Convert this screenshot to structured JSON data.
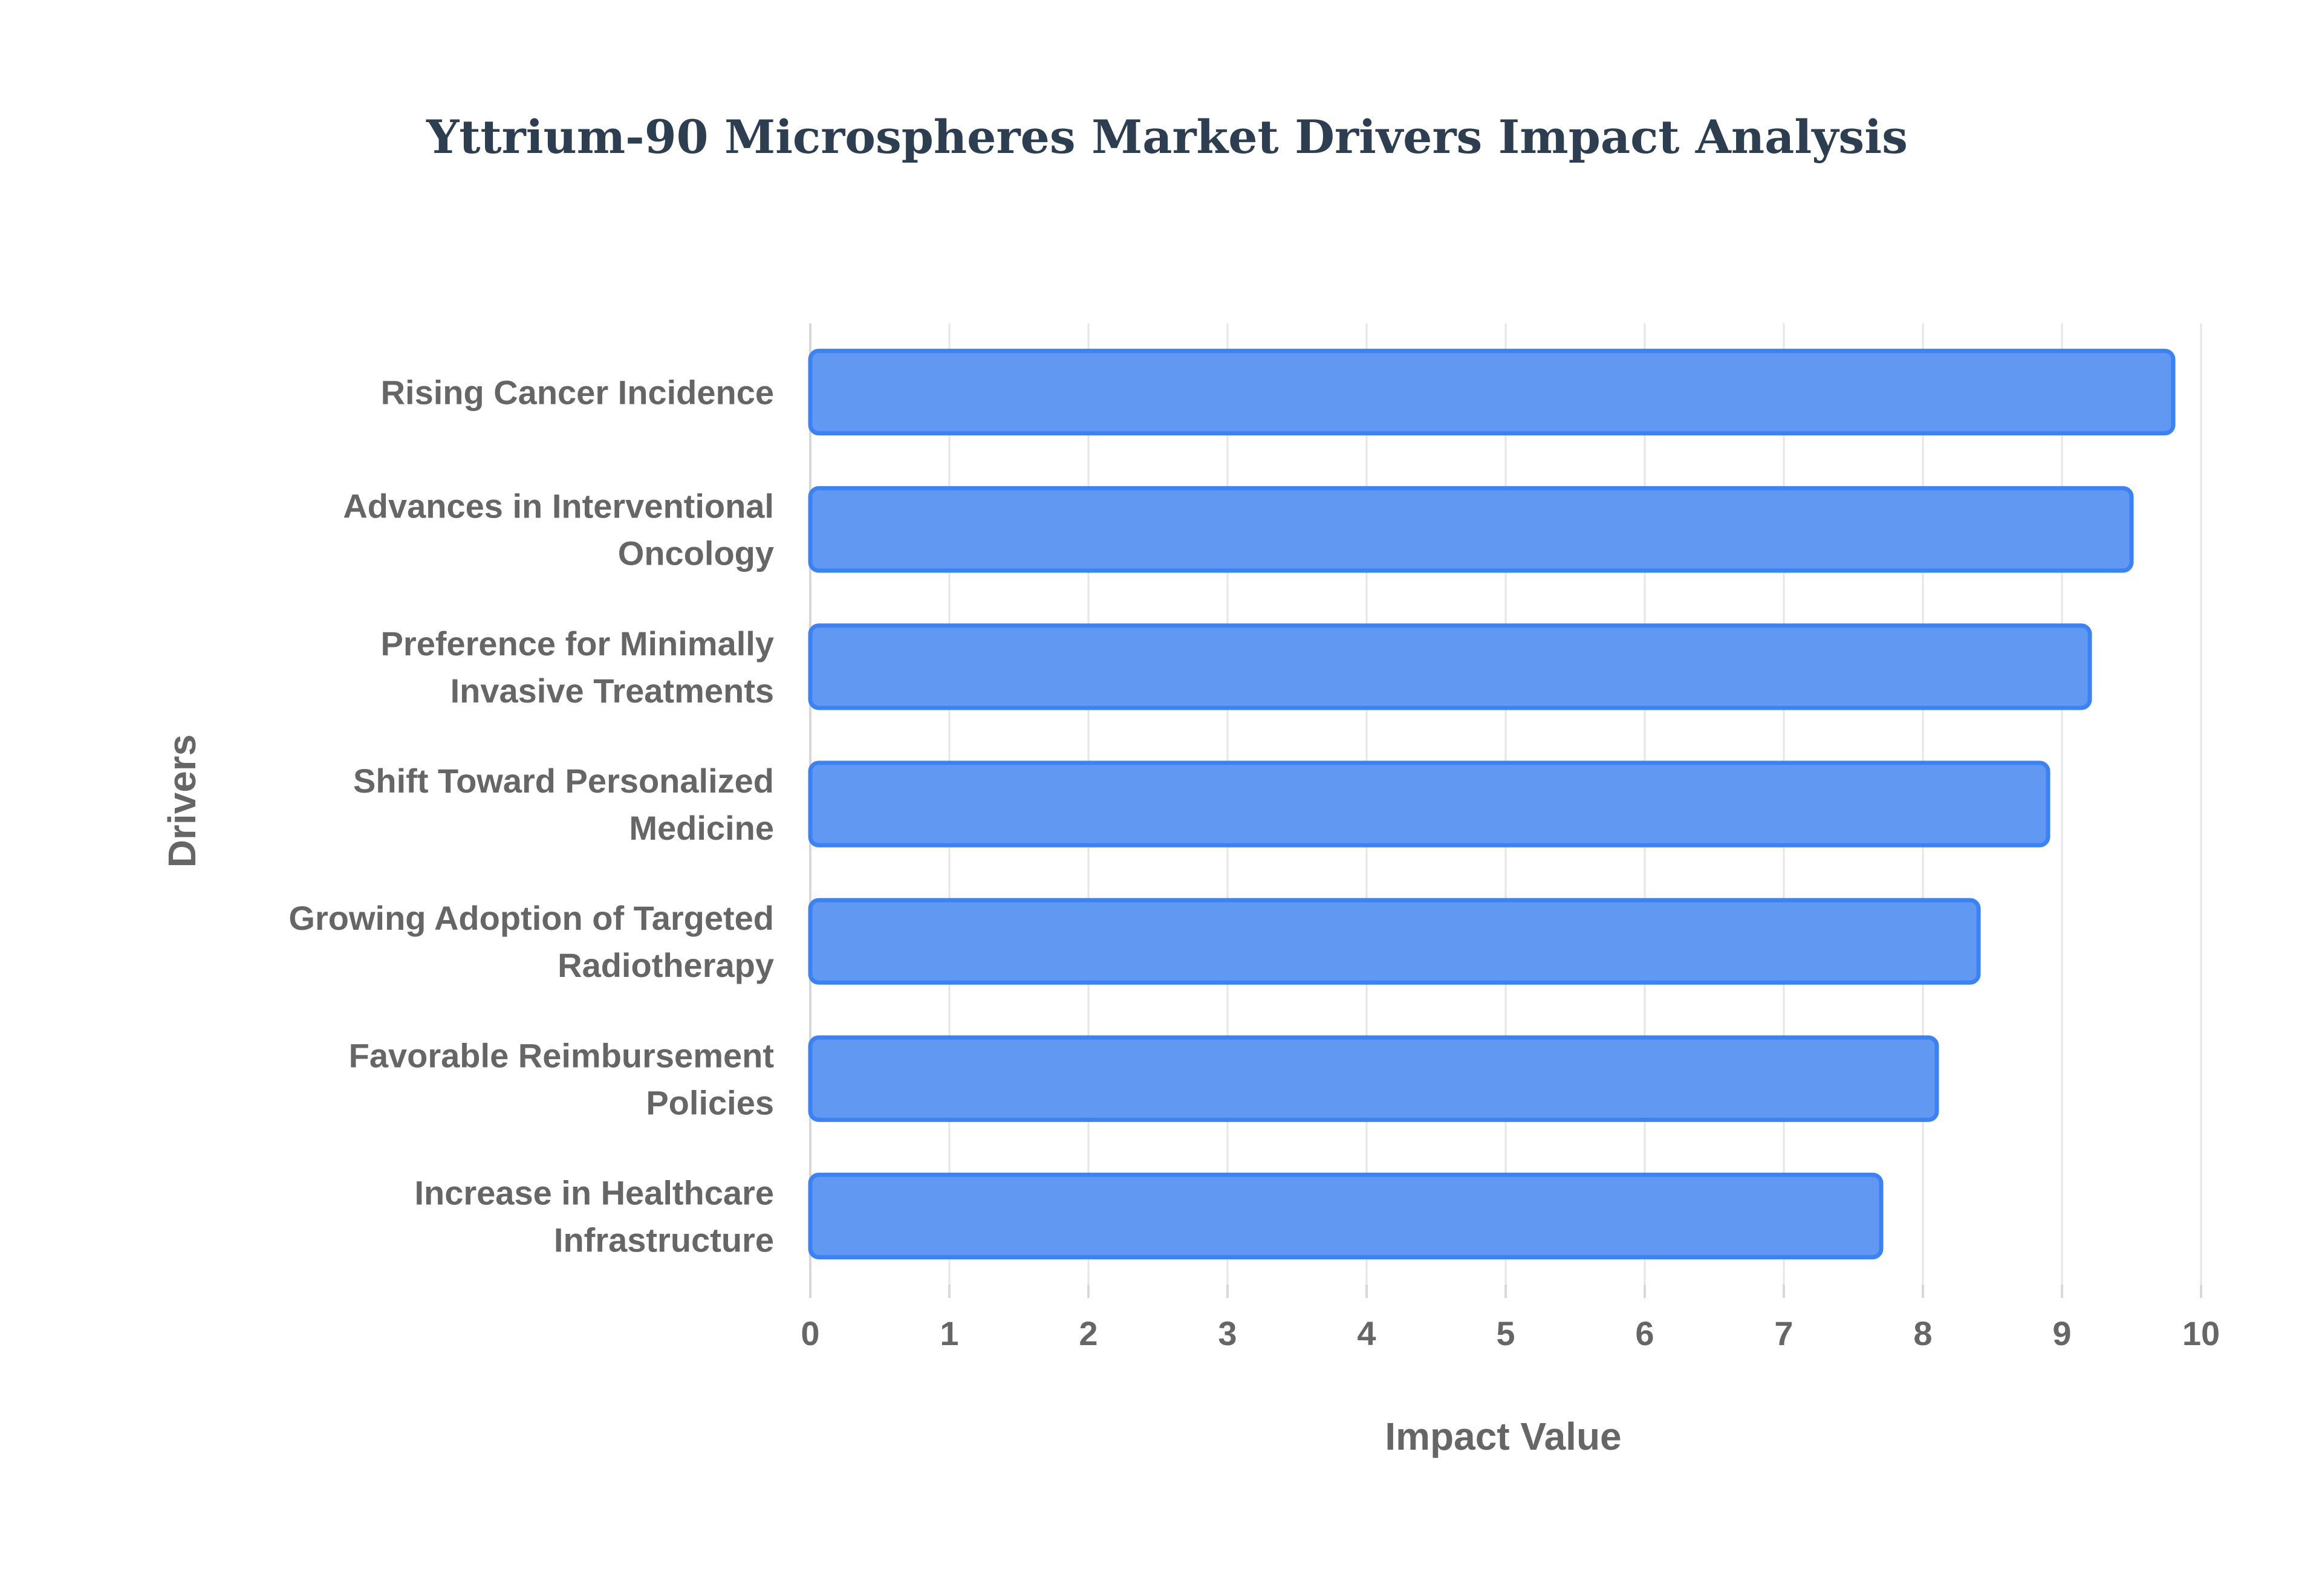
{
  "chart_data": {
    "type": "bar",
    "orientation": "horizontal",
    "title": "Yttrium-90 Microspheres Market Drivers Impact Analysis",
    "xlabel": "Impact Value",
    "ylabel": "Drivers",
    "xlim": [
      0,
      10
    ],
    "xticks": [
      "0",
      "1",
      "2",
      "3",
      "4",
      "5",
      "6",
      "7",
      "8",
      "9",
      "10"
    ],
    "grid": true,
    "categories": [
      [
        "Rising Cancer Incidence"
      ],
      [
        "Advances in Interventional",
        "Oncology"
      ],
      [
        "Preference for Minimally",
        "Invasive Treatments"
      ],
      [
        "Shift Toward Personalized",
        "Medicine"
      ],
      [
        "Growing Adoption of Targeted",
        "Radiotherapy"
      ],
      [
        "Favorable Reimbursement",
        "Policies"
      ],
      [
        "Increase in Healthcare",
        "Infrastructure"
      ]
    ],
    "values": [
      9.8,
      9.5,
      9.2,
      8.9,
      8.4,
      8.1,
      7.7
    ],
    "bar_color": "#6199f2",
    "bar_edge_color": "#3b82f6"
  }
}
